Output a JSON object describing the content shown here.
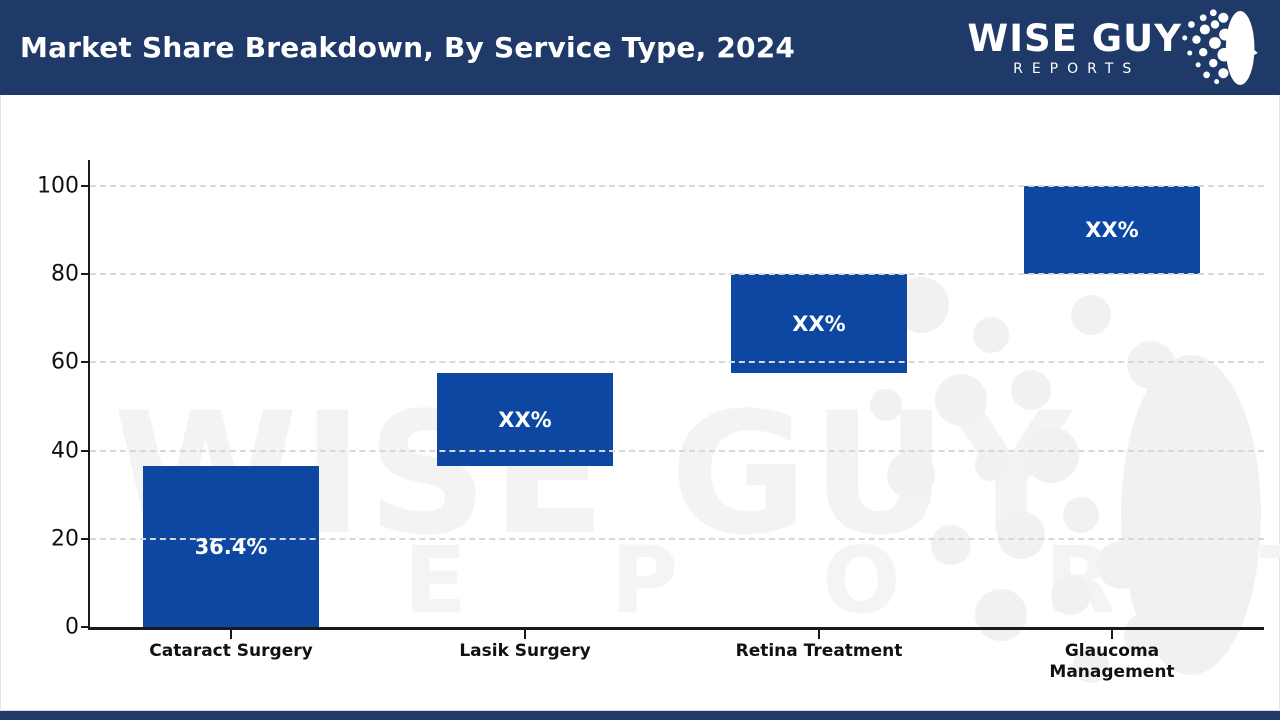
{
  "header": {
    "title": "Market Share Breakdown, By Service Type, 2024",
    "bg_color": "#1f3a68",
    "logo": {
      "line1": "WISE GUY",
      "line2": "REPORTS"
    }
  },
  "watermark": {
    "line1": "WISE GUY",
    "line2": "REPORTS"
  },
  "chart_data": {
    "type": "bar",
    "subtype": "waterfall",
    "title": "Market Share Breakdown, By Service Type, 2024",
    "xlabel": "",
    "ylabel": "",
    "categories": [
      "Cataract Surgery",
      "Lasik Surgery",
      "Retina Treatment",
      "Glaucoma Management"
    ],
    "segments": [
      {
        "category": "Cataract Surgery",
        "start": 0,
        "end": 36.4,
        "label": "36.4%"
      },
      {
        "category": "Lasik Surgery",
        "start": 36.4,
        "end": 57.5,
        "label": "XX%"
      },
      {
        "category": "Retina Treatment",
        "start": 57.5,
        "end": 80,
        "label": "XX%"
      },
      {
        "category": "Glaucoma Management",
        "start": 80,
        "end": 100,
        "label": "XX%"
      }
    ],
    "yticks": [
      0,
      20,
      40,
      60,
      80,
      100
    ],
    "ylim": [
      0,
      105
    ],
    "grid": "horizontal-dashed",
    "legend": "none",
    "bar_color": "#0d47a1",
    "grid_color": "#d8d8d8",
    "axis_color": "#1a1a1a",
    "value_label_color": "#ffffff"
  }
}
